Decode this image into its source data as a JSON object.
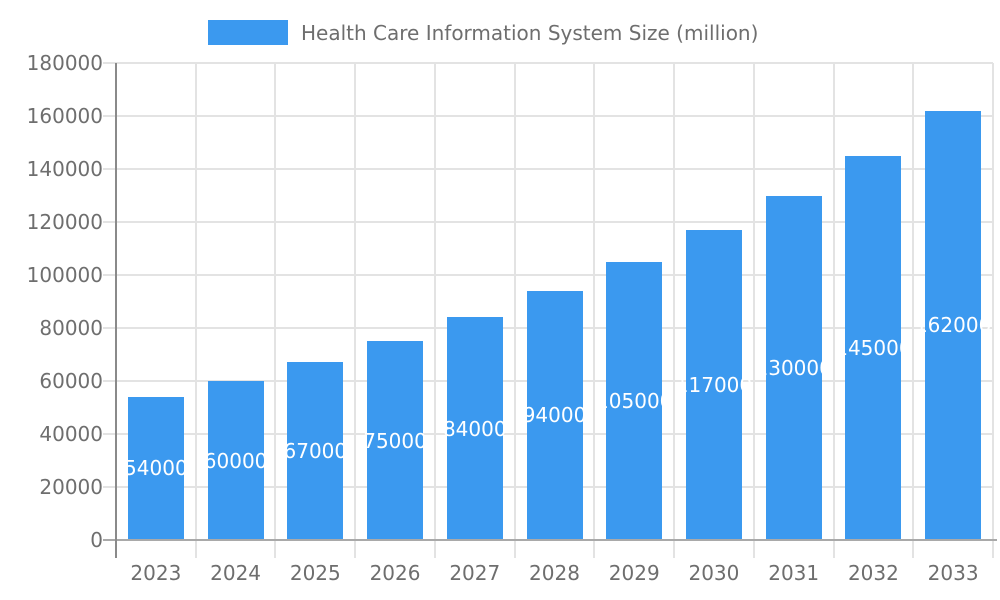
{
  "chart_data": {
    "type": "bar",
    "title": "Health Care Information System Size (million)",
    "legend_position": "top-center",
    "grid": true,
    "xlabel": "",
    "ylabel": "",
    "categories": [
      "2023",
      "2024",
      "2025",
      "2026",
      "2027",
      "2028",
      "2029",
      "2030",
      "2031",
      "2032",
      "2033"
    ],
    "series": [
      {
        "name": "Health Care Information System Size (million)",
        "values": [
          54000,
          60000,
          67000,
          75000,
          84000,
          94000,
          105000,
          117000,
          130000,
          145000,
          162000
        ]
      }
    ],
    "value_labels_visible": true,
    "yticks": [
      0,
      20000,
      40000,
      60000,
      80000,
      100000,
      120000,
      140000,
      160000,
      180000
    ],
    "ylim": [
      0,
      180000
    ]
  },
  "colors": {
    "bar": "#3B99EF",
    "grid": "#E3E3E3",
    "x_axis_line": "#A9A9A9",
    "y_axis_line": "#8A8A8A",
    "axis_text": "#6E6E6E",
    "value_text": "#FFFFFF",
    "background": "#FFFFFF"
  }
}
